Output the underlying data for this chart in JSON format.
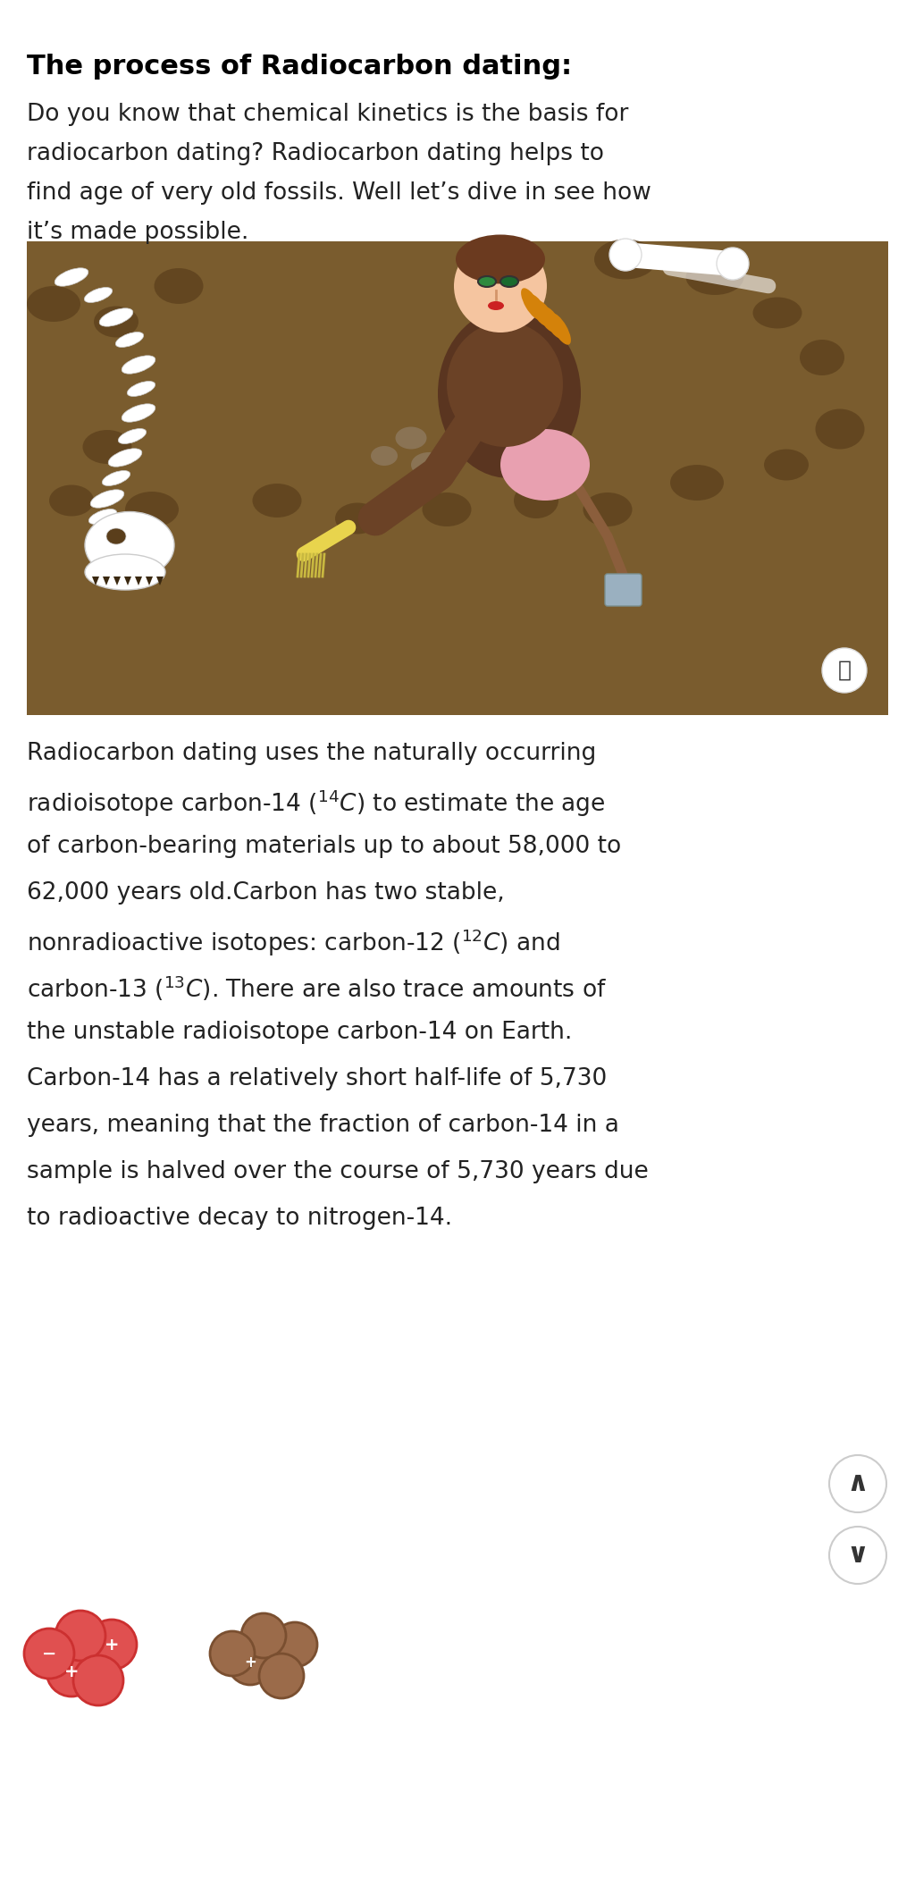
{
  "title": "The process of Radiocarbon dating:",
  "intro_text": "Do you know that chemical kinetics is the basis for\nradiocarbon dating? Radiocarbon dating helps to\nfind age of very old fossils. Well let’s dive in see how\nit’s made possible.",
  "body_text_lines": [
    "Radiocarbon dating uses the naturally occurring",
    "radioisotope carbon-14 (¹⁴C̲) to estimate the age",
    "of carbon-bearing materials up to about 58,000 to",
    "62,000 years old.Carbon has two stable,",
    "nonradioactive isotopes: carbon-12 (¹²C̲) and",
    "carbon-13 (¹³C̲). There are also trace amounts of",
    "the unstable radioisotope carbon-14 on Earth.",
    "Carbon-14 has a relatively short half-life of 5,730",
    "years, meaning that the fraction of carbon-14 in a",
    "sample is halved over the course of 5,730 years due",
    "to radioactive decay to nitrogen-14."
  ],
  "bg_color": "#ffffff",
  "title_color": "#000000",
  "body_color": "#222222",
  "image_bg": "#7a5c2e",
  "title_fontsize": 22,
  "intro_fontsize": 19,
  "body_fontsize": 19,
  "nav_up_symbol": "∧",
  "nav_down_symbol": "∨"
}
